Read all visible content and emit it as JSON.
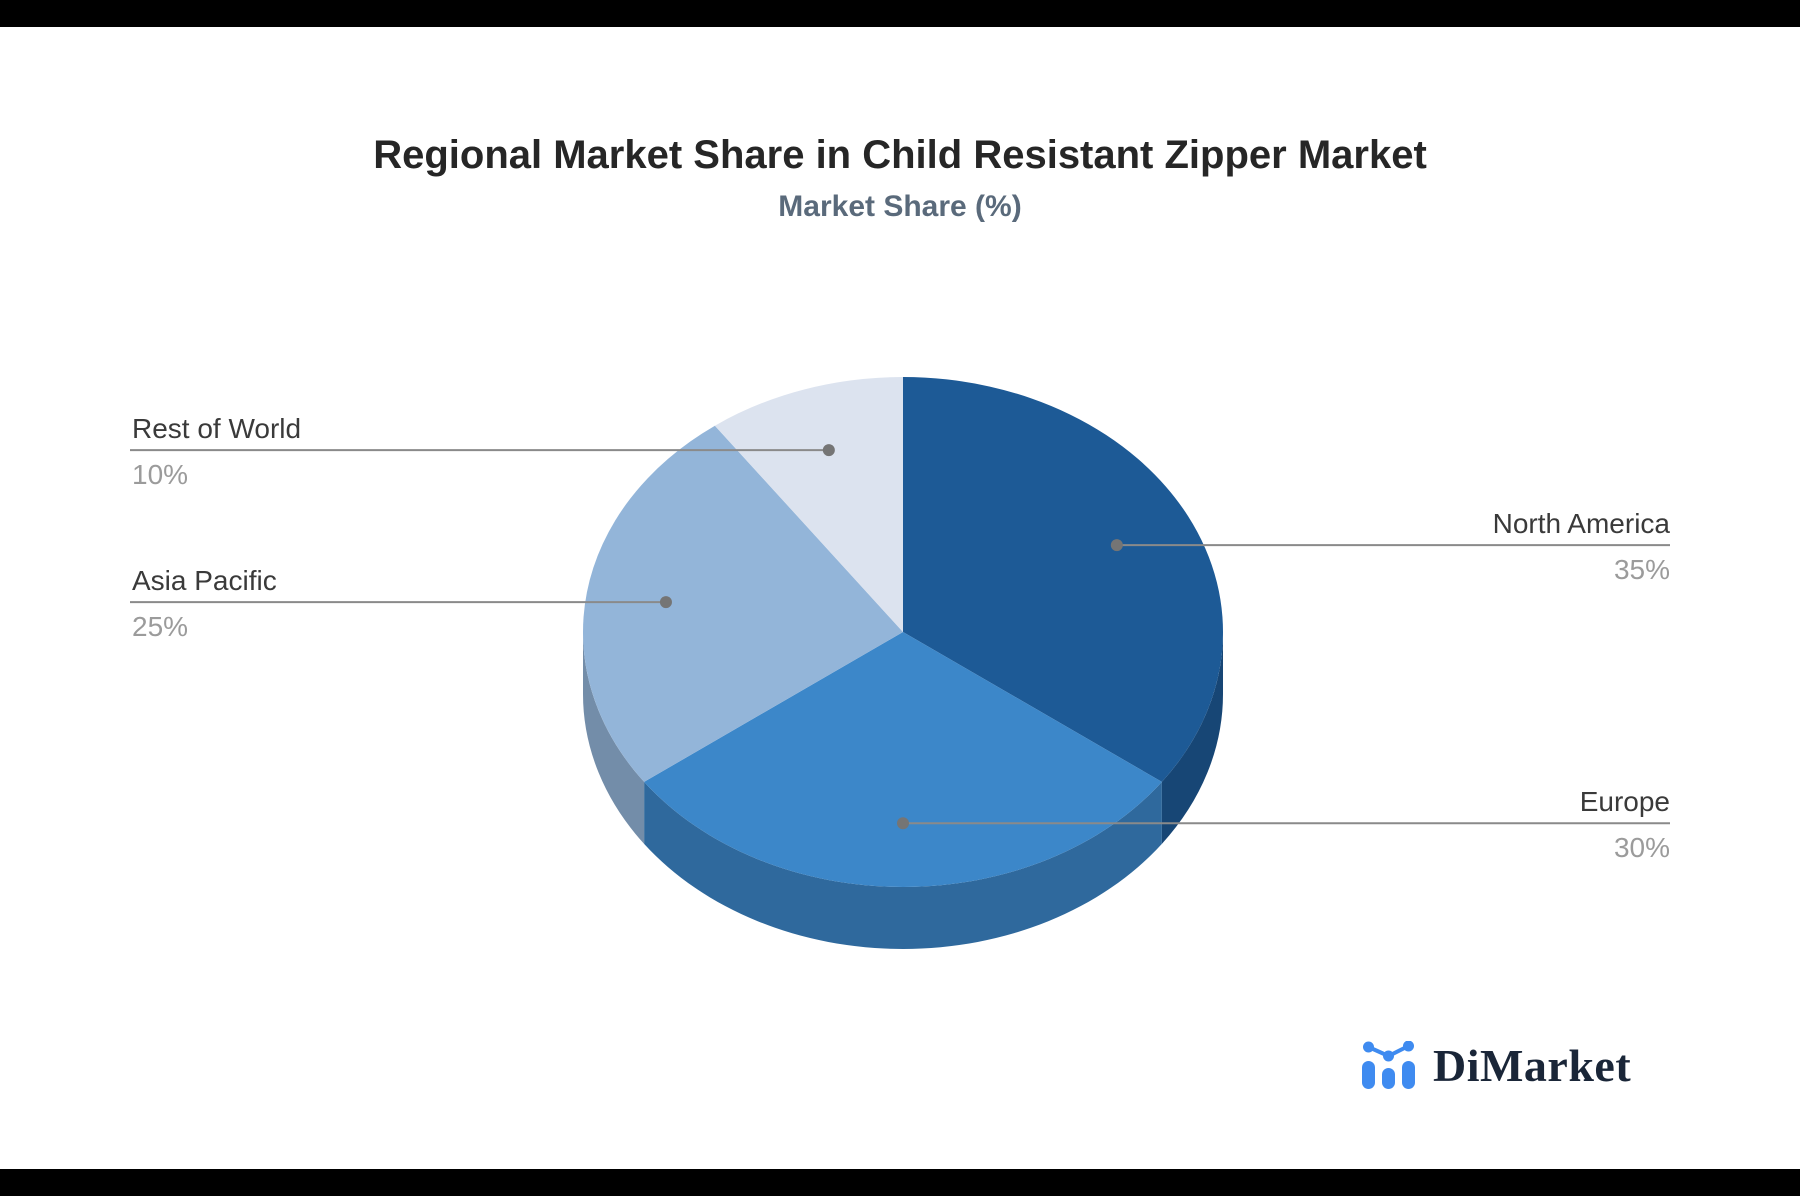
{
  "page": {
    "background": "#FFFFFF",
    "letterbox_color": "#000000"
  },
  "chart_data": {
    "type": "pie",
    "title": "Regional Market Share in Child Resistant Zipper Market",
    "subtitle": "Market Share (%)",
    "unit": "%",
    "effect": "3d",
    "start_angle_deg": 0,
    "direction": "clockwise",
    "segments": [
      {
        "label": "North America",
        "value": 35,
        "display": "35%",
        "color": "#1D5A96",
        "label_side": "right"
      },
      {
        "label": "Europe",
        "value": 30,
        "display": "30%",
        "color": "#3C87C9",
        "label_side": "right"
      },
      {
        "label": "Asia Pacific",
        "value": 25,
        "display": "25%",
        "color": "#93B5D9",
        "label_side": "left"
      },
      {
        "label": "Rest of World",
        "value": 10,
        "display": "10%",
        "color": "#DCE3EF",
        "label_side": "left"
      }
    ],
    "title_color": "#262626",
    "subtitle_color": "#5A6A7B",
    "label_name_color": "#3A3A3A",
    "label_value_color": "#9B9B9B",
    "connector_color": "#8A8A8A",
    "connector_dot_color": "#757575",
    "legend_position": "none",
    "grid": false
  },
  "branding": {
    "logo_text": "DiMarket",
    "logo_icon": "bar-chart-icon",
    "logo_text_color": "#1A2638",
    "logo_icon_color": "#3F8BF0"
  }
}
